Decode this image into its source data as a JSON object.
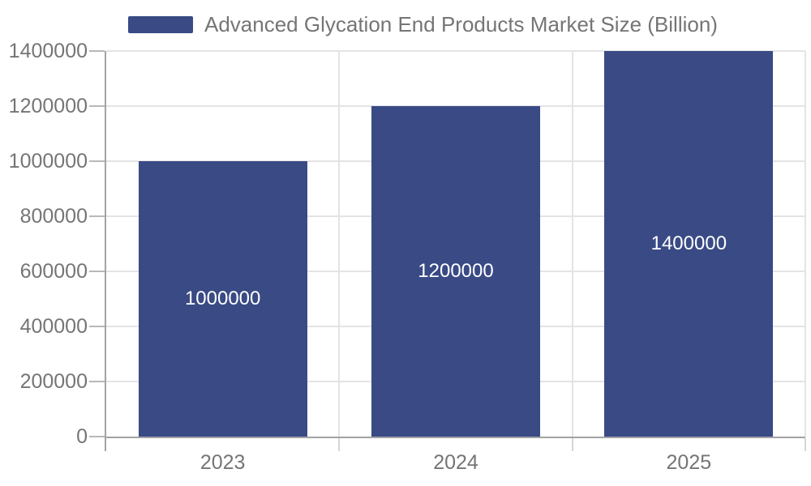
{
  "chart_data": {
    "type": "bar",
    "title": "Advanced Glycation End Products Market Size (Billion)",
    "legend": {
      "position": "top",
      "entries": [
        "Advanced Glycation End Products Market Size (Billion)"
      ]
    },
    "categories": [
      "2023",
      "2024",
      "2025"
    ],
    "series": [
      {
        "name": "Advanced Glycation End Products Market Size (Billion)",
        "values": [
          1000000,
          1200000,
          1400000
        ]
      }
    ],
    "value_labels": [
      "1000000",
      "1200000",
      "1400000"
    ],
    "xlabel": "",
    "ylabel": "",
    "ylim": [
      0,
      1400000
    ],
    "ytick_interval": 200000,
    "yticks": [
      0,
      200000,
      400000,
      600000,
      800000,
      1000000,
      1200000,
      1400000
    ],
    "ytick_labels": [
      "0",
      "200000",
      "400000",
      "600000",
      "800000",
      "1000000",
      "1200000",
      "1400000"
    ],
    "grid": true,
    "colors": {
      "bar": "#394A85",
      "grid": "#E4E4E4",
      "axis": "#A3A3A3",
      "y_tick": "#B8B8B8",
      "x_tick": "#D6D6D6",
      "axis_label": "#757575",
      "title": "#757575",
      "value_label": "#FFFFFF",
      "background": "#FFFFFF"
    }
  }
}
